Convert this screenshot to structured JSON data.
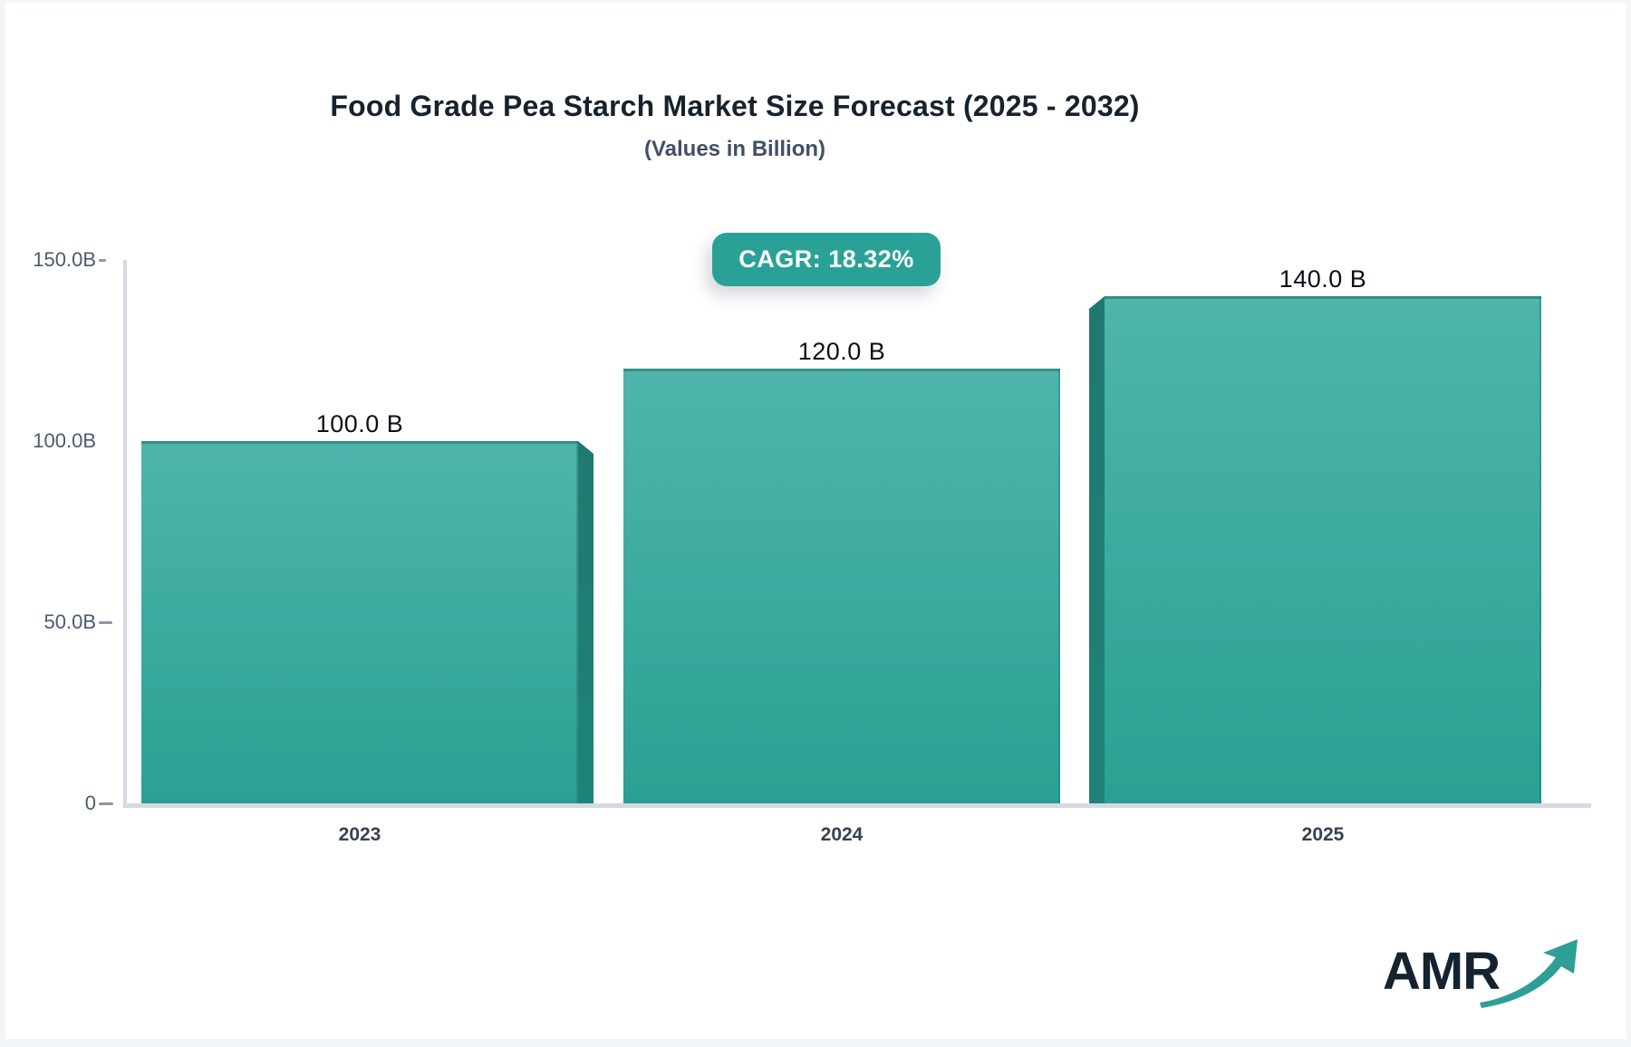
{
  "header": {
    "title": "Food Grade Pea Starch Market Size Forecast (2025 - 2032)",
    "subtitle": "(Values in Billion)"
  },
  "badge": {
    "label": "CAGR: 18.32%",
    "background": "#2aa197",
    "text_color": "#ffffff"
  },
  "chart_data": {
    "type": "bar",
    "title": "Food Grade Pea Starch Market Size Forecast (2025 - 2032)",
    "subtitle": "(Values in Billion)",
    "unit": "Billion",
    "cagr_percent": "18.32%",
    "categories": [
      "2023",
      "2024",
      "2025"
    ],
    "values": [
      100.0,
      120.0,
      140.0
    ],
    "value_labels": [
      "100.0 B",
      "120.0 B",
      "140.0 B"
    ],
    "ylim": [
      0,
      150
    ],
    "grid": false,
    "legend": "none",
    "y_ticks": [
      {
        "label": "150.0B",
        "value": 150
      },
      {
        "label": "100.0B",
        "value": 100
      },
      {
        "label": "50.0B",
        "value": 50
      },
      {
        "label": "0",
        "value": 0
      }
    ],
    "colors": {
      "bar_top": "#4fb5ac",
      "bar_bottom": "#2aa093",
      "bar_side": "#1f8277",
      "axis": "#d5d9e0",
      "tick": "#8e97a4"
    }
  },
  "logo": {
    "text": "AMR",
    "arrow_color": "#2f9e94"
  }
}
